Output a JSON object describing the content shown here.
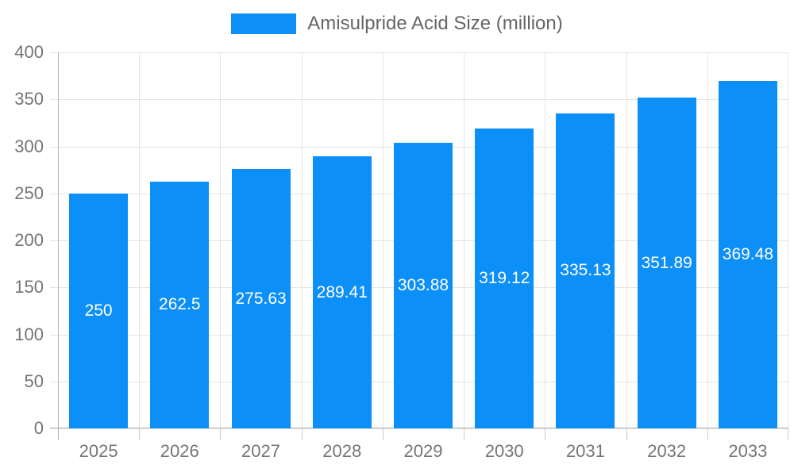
{
  "legend": {
    "label": "Amisulpride Acid Size (million)"
  },
  "colors": {
    "bar": "#0D8FF8",
    "grid": "#E4E4E4",
    "axis": "#B5B5B5",
    "tick": "#CCCCCC",
    "axis_text": "#757575",
    "legend_text": "#666666",
    "bar_label_text": "#FFFFFF",
    "background": "#FFFFFF"
  },
  "chart_data": {
    "type": "bar",
    "title": "",
    "xlabel": "",
    "ylabel": "",
    "series_name": "Amisulpride Acid Size (million)",
    "categories": [
      "2025",
      "2026",
      "2027",
      "2028",
      "2029",
      "2030",
      "2031",
      "2032",
      "2033"
    ],
    "values": [
      250,
      262.5,
      275.63,
      289.41,
      303.88,
      319.12,
      335.13,
      351.89,
      369.48
    ],
    "bar_labels": [
      "250",
      "262.5",
      "275.63",
      "289.41",
      "303.88",
      "319.12",
      "335.13",
      "351.89",
      "369.48"
    ],
    "ylim": [
      0,
      400
    ],
    "ytick_step": 50,
    "ytick_labels": [
      "0",
      "50",
      "100",
      "150",
      "200",
      "250",
      "300",
      "350",
      "400"
    ],
    "grid": true,
    "legend_position": "top",
    "bar_label_position": "inside-middle"
  }
}
